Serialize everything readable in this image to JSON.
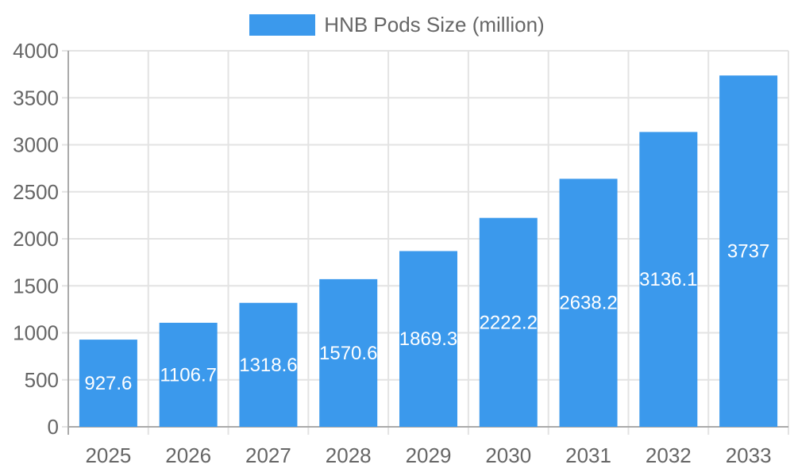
{
  "legend": {
    "label": "HNB Pods Size (million)"
  },
  "colors": {
    "bar": "#3B99EC",
    "grid": "#E3E3E3",
    "axis": "#AAAAAA",
    "tick_text": "#666666",
    "value_label": "#FFFFFF",
    "background": "#FFFFFF"
  },
  "chart_data": {
    "type": "bar",
    "title": "",
    "categories": [
      "2025",
      "2026",
      "2027",
      "2028",
      "2029",
      "2030",
      "2031",
      "2032",
      "2033"
    ],
    "series": [
      {
        "name": "HNB Pods Size (million)",
        "values": [
          927.6,
          1106.7,
          1318.6,
          1570.6,
          1869.3,
          2222.2,
          2638.2,
          3136.1,
          3737
        ]
      }
    ],
    "value_labels": [
      "927.6",
      "1106.7",
      "1318.6",
      "1570.6",
      "1869.3",
      "2222.2",
      "2638.2",
      "3136.1",
      "3737"
    ],
    "value_label_position": "inside-center",
    "xlabel": "",
    "ylabel": "",
    "ylim": [
      0,
      4000
    ],
    "yticks": [
      0,
      500,
      1000,
      1500,
      2000,
      2500,
      3000,
      3500,
      4000
    ],
    "grid": true,
    "legend_position": "top"
  }
}
